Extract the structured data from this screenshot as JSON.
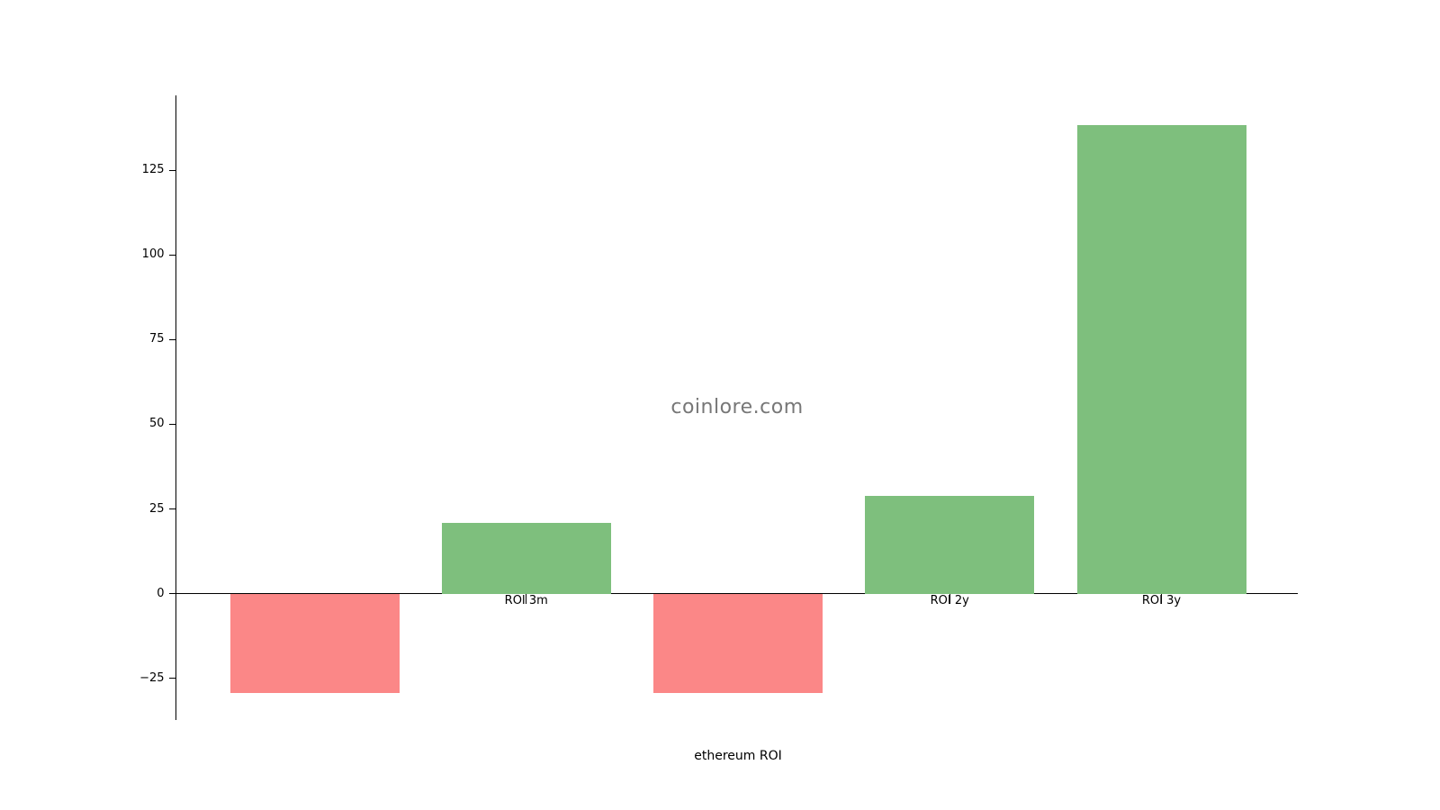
{
  "watermark": "coinlore.com",
  "chart_data": {
    "type": "bar",
    "title": "",
    "xlabel": "ethereum ROI",
    "ylabel": "",
    "categories": [
      "",
      "ROI 3m",
      "",
      "ROI 2y",
      "ROI 3y"
    ],
    "values": [
      -29.2,
      20.9,
      -29.4,
      28.8,
      138.3
    ],
    "y_ticks": [
      -25,
      0,
      25,
      50,
      75,
      100,
      125
    ],
    "y_tick_labels": [
      "−25",
      "0",
      "25",
      "50",
      "75",
      "100",
      "125"
    ],
    "ylim": [
      -37.3,
      147.1
    ],
    "grid": false,
    "legend": "none",
    "colors": {
      "positive_bar": "#7ebf7d",
      "negative_bar": "#fb8787",
      "axis": "#000000",
      "tick_text": "#000000",
      "watermark": "#777777"
    }
  }
}
